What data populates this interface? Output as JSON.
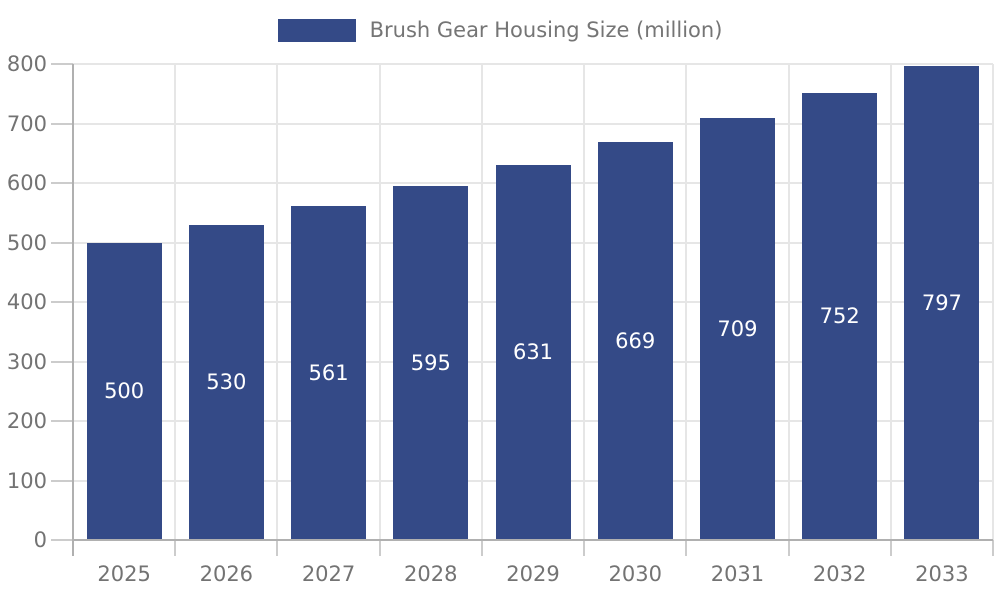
{
  "legend": {
    "label": "Brush Gear Housing Size (million)"
  },
  "chart_data": {
    "type": "bar",
    "title": "Brush Gear Housing Size (million)",
    "categories": [
      "2025",
      "2026",
      "2027",
      "2028",
      "2029",
      "2030",
      "2031",
      "2032",
      "2033"
    ],
    "values": [
      500,
      530,
      561,
      595,
      631,
      669,
      709,
      752,
      797
    ],
    "series": [
      {
        "name": "Brush Gear Housing Size (million)",
        "values": [
          500,
          530,
          561,
          595,
          631,
          669,
          709,
          752,
          797
        ]
      }
    ],
    "xlabel": "",
    "ylabel": "",
    "ylim": [
      0,
      800
    ],
    "ytick_interval": 100,
    "yticks": [
      0,
      100,
      200,
      300,
      400,
      500,
      600,
      700,
      800
    ],
    "grid": true,
    "legend_position": "top-center",
    "value_labels": "inside-center",
    "colors": {
      "bar": "#344a87",
      "value_label": "#ffffff",
      "grid": "#e6e6e6",
      "axis": "#b0b0b0",
      "tick": "#cccccc",
      "tick_label": "#737373",
      "legend_text": "#757575",
      "background": "#ffffff"
    }
  }
}
